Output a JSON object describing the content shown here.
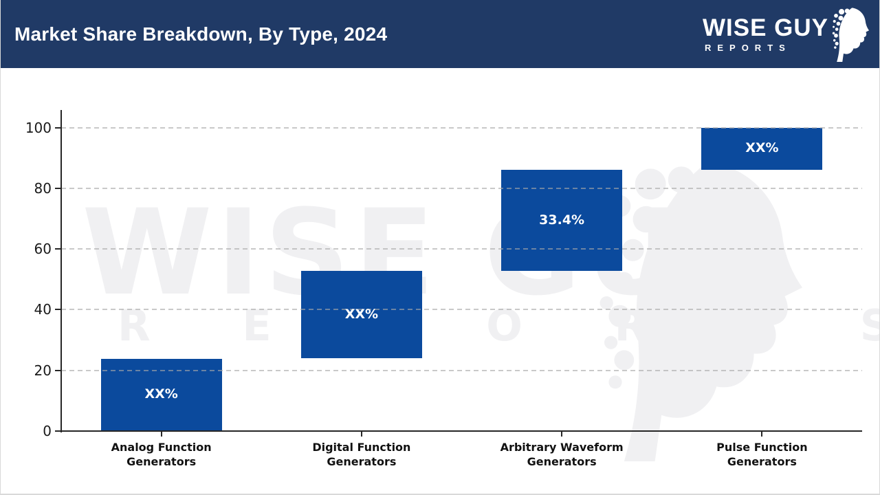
{
  "header": {
    "title": "Market Share Breakdown, By Type, 2024",
    "logo": {
      "name": "WISE GUY",
      "sub": "REPORTS"
    }
  },
  "watermark": {
    "line1": "WISE GUY",
    "line2": "R E P O R T S"
  },
  "chart_data": {
    "type": "bar",
    "subtype": "waterfall",
    "title": "Market Share Breakdown, By Type, 2024",
    "categories": [
      "Analog Function\nGenerators",
      "Digital Function\nGenerators",
      "Arbitrary Waveform\nGenerators",
      "Pulse Function\nGenerators"
    ],
    "segments": [
      {
        "start": 0,
        "end": 23.9,
        "label": "XX%"
      },
      {
        "start": 23.9,
        "end": 52.7,
        "label": "XX%"
      },
      {
        "start": 52.7,
        "end": 86.1,
        "label": "33.4%"
      },
      {
        "start": 86.1,
        "end": 100,
        "label": "XX%"
      }
    ],
    "yticks": [
      0,
      20,
      40,
      60,
      80,
      100
    ],
    "ylim": [
      0,
      105.8
    ],
    "xlabel": "",
    "ylabel": "",
    "grid": "dashed-horizontal-over-bars",
    "legend": "none",
    "bar_color": "#0b4a9d",
    "bar_label_color": "#ffffff",
    "axis_color": "#262626",
    "header_color": "#203a66"
  }
}
